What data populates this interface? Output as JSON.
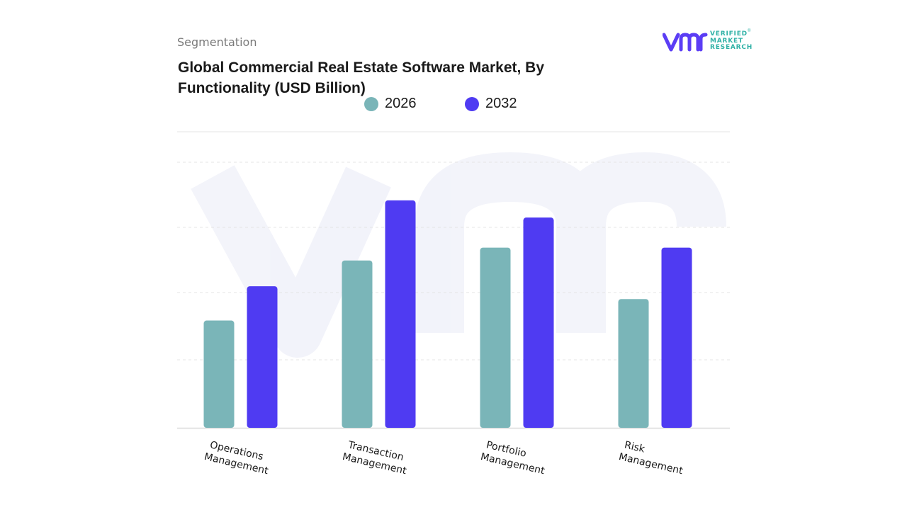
{
  "header": {
    "segment": "Segmentation",
    "title": "Global Commercial Real Estate Software Market, By Functionality (USD Billion)"
  },
  "logo": {
    "line1": "VERIFIED",
    "line2": "MARKET",
    "line3": "RESEARCH",
    "brand_color": "#2fb1a6",
    "mark_color": "#5b3df5"
  },
  "chart_data": {
    "type": "bar",
    "title": "Global Commercial Real Estate Software Market, By Functionality (USD Billion)",
    "xlabel": "",
    "ylabel": "",
    "categories": [
      [
        "Operations",
        "Management"
      ],
      [
        "Transaction",
        "Management"
      ],
      [
        "Portfolio",
        "Management"
      ],
      [
        "Risk",
        "Management"
      ]
    ],
    "series": [
      {
        "name": "2026",
        "color": "#7ab5b8",
        "values": [
          2.5,
          3.9,
          4.2,
          3.0
        ]
      },
      {
        "name": "2032",
        "color": "#4f3bf2",
        "values": [
          3.3,
          5.3,
          4.9,
          4.2
        ]
      }
    ],
    "ylim": [
      0,
      6.9
    ],
    "grid": true,
    "legend": "top-center"
  }
}
